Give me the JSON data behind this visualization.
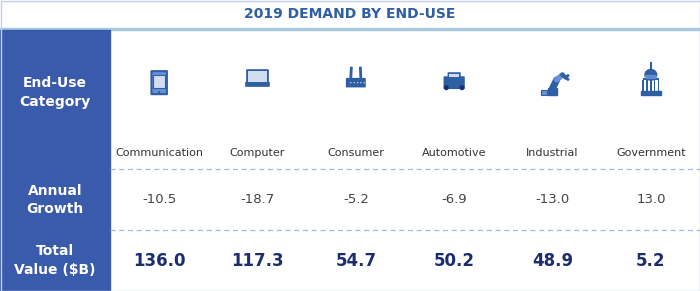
{
  "title": "2019 DEMAND BY END-USE",
  "title_color": "#2e5fa3",
  "categories": [
    "Communication",
    "Computer",
    "Consumer",
    "Automotive",
    "Industrial",
    "Government"
  ],
  "annual_growth": [
    "-10.5",
    "-18.7",
    "-5.2",
    "-6.9",
    "-13.0",
    "13.0"
  ],
  "total_value": [
    "136.0",
    "117.3",
    "54.7",
    "50.2",
    "48.9",
    "5.2"
  ],
  "row_labels": [
    "End-Use\nCategory",
    "Annual\nGrowth",
    "Total\nValue ($B)"
  ],
  "sidebar_bg": "#3a5bab",
  "sidebar_text_color": "#ffffff",
  "body_bg": "#ffffff",
  "outer_bg": "#edf2f9",
  "grid_color": "#a0b8d8",
  "value_color": "#1a2e6e",
  "growth_color": "#444444",
  "cat_color": "#333333",
  "title_fontsize": 10,
  "growth_fontsize": 9.5,
  "value_fontsize": 12,
  "icon_color": "#2e5fa3",
  "icon_color_light": "#6a8fd8"
}
